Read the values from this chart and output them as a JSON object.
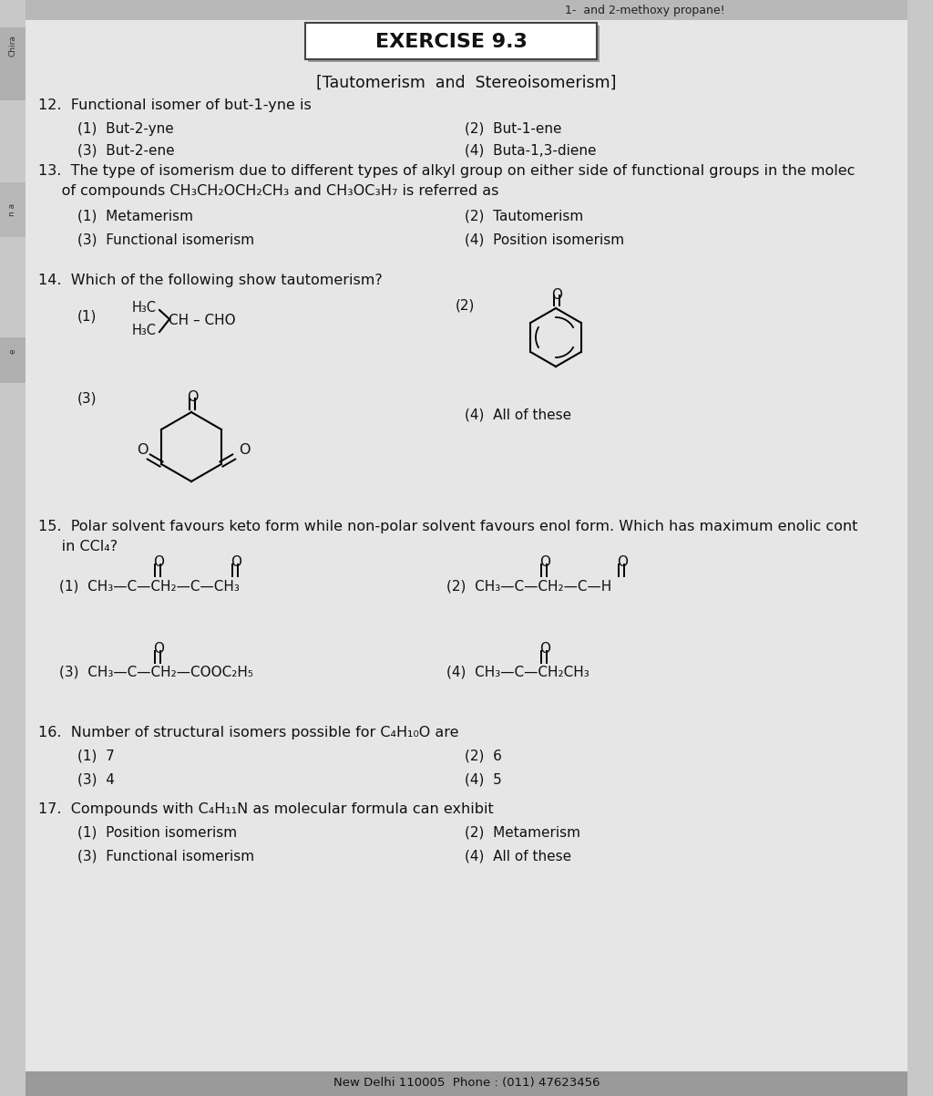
{
  "bg_color": "#c8c8c8",
  "paper_color": "#e8e8e8",
  "title": "EXERCISE 9.3",
  "subtitle": "[Tautomerism  and  Stereoisomerism]",
  "q12_text": "12.  Functional isomer of but-1-yne is",
  "q12_opts": [
    [
      "(1)  But-2-yne",
      "(2)  But-1-ene"
    ],
    [
      "(3)  But-2-ene",
      "(4)  Buta-1,3-diene"
    ]
  ],
  "q13_line1": "13.  The type of isomerism due to different types of alkyl group on either side of functional groups in the molec",
  "q13_line2": "     of compounds CH₃CH₂OCH₂CH₃ and CH₃OC₃H₇ is referred as",
  "q13_opts": [
    [
      "(1)  Metamerism",
      "(2)  Tautomerism"
    ],
    [
      "(3)  Functional isomerism",
      "(4)  Position isomerism"
    ]
  ],
  "q14_text": "14.  Which of the following show tautomerism?",
  "q14_opt4": "(4)  All of these",
  "q15_line1": "15.  Polar solvent favours keto form while non-polar solvent favours enol form. Which has maximum enolic cont",
  "q15_line2": "     in CCl₄?",
  "q16_text": "16.  Number of structural isomers possible for C₄H₁₀O are",
  "q16_opts": [
    [
      "(1)  7",
      "(2)  6"
    ],
    [
      "(3)  4",
      "(4)  5"
    ]
  ],
  "q17_text": "17.  Compounds with C₄H₁₁N as molecular formula can exhibit",
  "q17_opts": [
    [
      "(1)  Position isomerism",
      "(2)  Metamerism"
    ],
    [
      "(3)  Functional isomerism",
      "(4)  All of these"
    ]
  ],
  "footer": "New Delhi 110005  Phone : (011) 47623456",
  "top_text": "1-  and 2-methoxy propane!"
}
